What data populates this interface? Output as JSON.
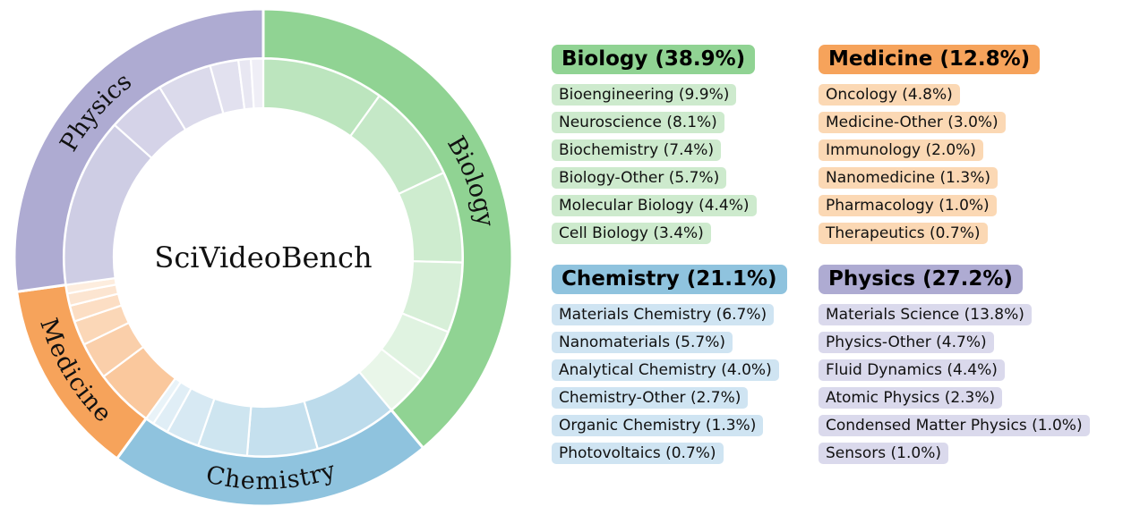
{
  "chart_data": {
    "type": "pie",
    "variant": "sunburst-donut",
    "title": "SciVideoBench",
    "start_angle_deg": 0,
    "direction": "clockwise",
    "legend_position": "right",
    "legend_layout": "2x2-grid",
    "categories": [
      {
        "name": "Biology",
        "percent": 38.9,
        "color": "#90d393",
        "light_color": "#cdeacd",
        "subcategories": [
          {
            "name": "Bioengineering",
            "percent": 9.9
          },
          {
            "name": "Neuroscience",
            "percent": 8.1
          },
          {
            "name": "Biochemistry",
            "percent": 7.4
          },
          {
            "name": "Biology-Other",
            "percent": 5.7
          },
          {
            "name": "Molecular Biology",
            "percent": 4.4
          },
          {
            "name": "Cell Biology",
            "percent": 3.4
          }
        ]
      },
      {
        "name": "Chemistry",
        "percent": 21.1,
        "color": "#8fc3de",
        "light_color": "#cfe4f2",
        "subcategories": [
          {
            "name": "Materials Chemistry",
            "percent": 6.7
          },
          {
            "name": "Nanomaterials",
            "percent": 5.7
          },
          {
            "name": "Analytical Chemistry",
            "percent": 4.0
          },
          {
            "name": "Chemistry-Other",
            "percent": 2.7
          },
          {
            "name": "Organic Chemistry",
            "percent": 1.3
          },
          {
            "name": "Photovoltaics",
            "percent": 0.7
          }
        ]
      },
      {
        "name": "Medicine",
        "percent": 12.8,
        "color": "#f6a35b",
        "light_color": "#fbd8b4",
        "subcategories": [
          {
            "name": "Oncology",
            "percent": 4.8
          },
          {
            "name": "Medicine-Other",
            "percent": 3.0
          },
          {
            "name": "Immunology",
            "percent": 2.0
          },
          {
            "name": "Nanomedicine",
            "percent": 1.3
          },
          {
            "name": "Pharmacology",
            "percent": 1.0
          },
          {
            "name": "Therapeutics",
            "percent": 0.7
          }
        ]
      },
      {
        "name": "Physics",
        "percent": 27.2,
        "color": "#aeabd2",
        "light_color": "#dad9ec",
        "subcategories": [
          {
            "name": "Materials Science",
            "percent": 13.8
          },
          {
            "name": "Physics-Other",
            "percent": 4.7
          },
          {
            "name": "Fluid Dynamics",
            "percent": 4.4
          },
          {
            "name": "Atomic Physics",
            "percent": 2.3
          },
          {
            "name": "Condensed Matter Physics",
            "percent": 1.0
          },
          {
            "name": "Sensors",
            "percent": 1.0
          }
        ]
      }
    ],
    "legend_panel_category_indices": [
      0,
      2,
      1,
      3
    ]
  }
}
